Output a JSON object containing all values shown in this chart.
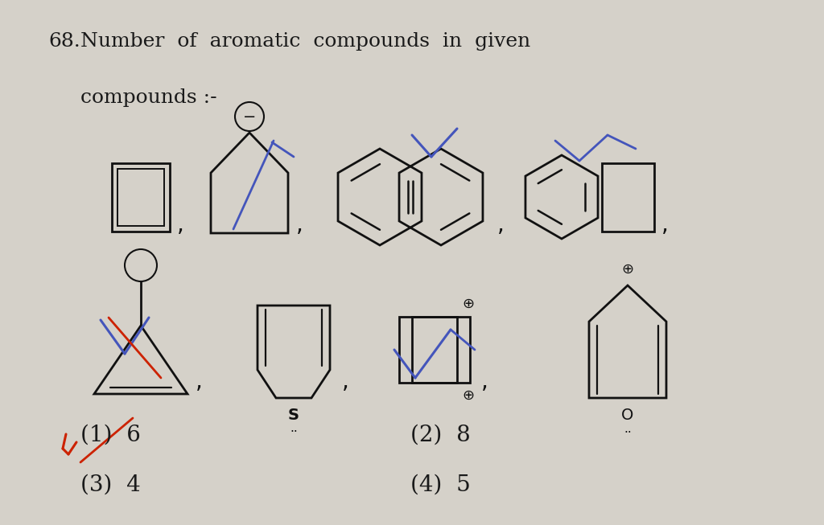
{
  "background_color": "#d5d1c9",
  "title_number": "68.",
  "title_text": "Number  of  aromatic  compounds  in  given",
  "subtitle_text": "compounds :-",
  "font_color": "#1a1a1a",
  "line_color": "#111111",
  "red_mark_color": "#cc2200",
  "blue_mark_color": "#4455bb",
  "lw": 2.0
}
